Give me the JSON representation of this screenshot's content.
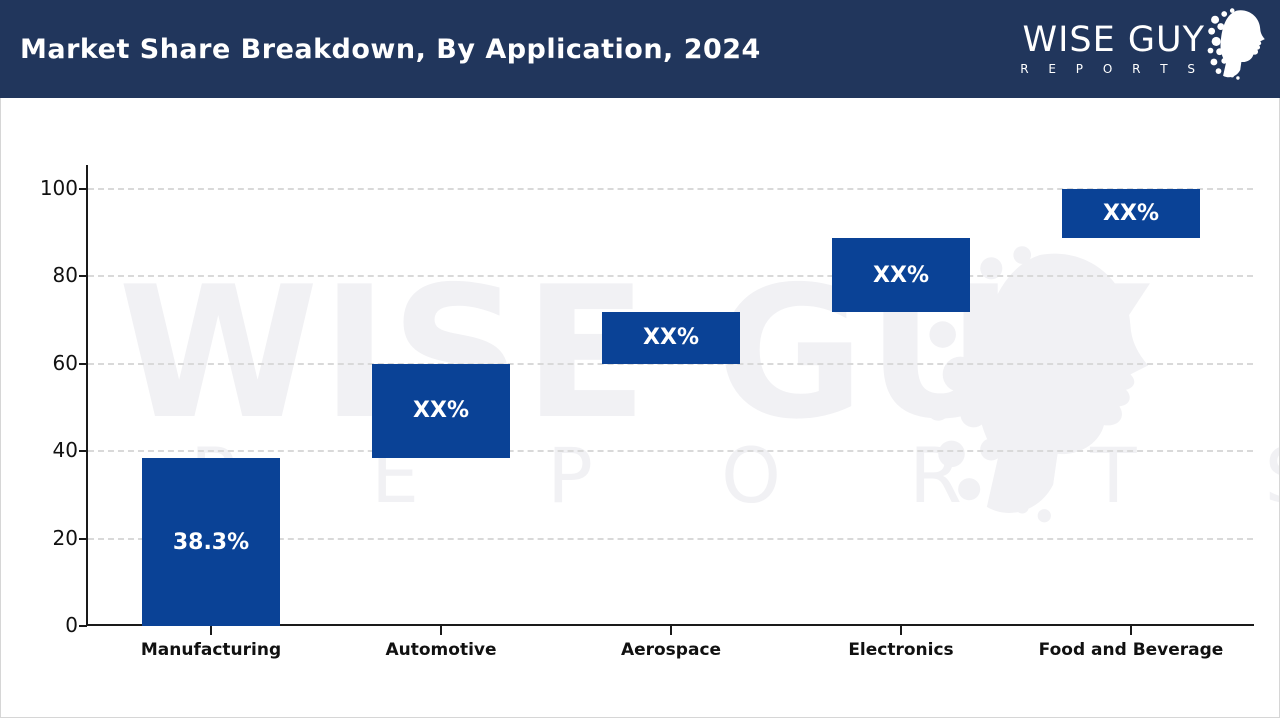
{
  "header": {
    "title": "Market Share Breakdown, By Application, 2024",
    "bg_color": "#21365c",
    "brand": {
      "line1": "WISE GUY",
      "line2": "R E P O R T S"
    }
  },
  "watermark": {
    "line1": "WISE GUY",
    "line2": "R E P O R T S"
  },
  "chart_data": {
    "type": "bar",
    "subtype": "waterfall",
    "title": "Market Share Breakdown, By Application, 2024",
    "categories": [
      "Manufacturing",
      "Automotive",
      "Aerospace",
      "Electronics",
      "Food and Beverage"
    ],
    "segments": [
      {
        "category": "Manufacturing",
        "start": 0,
        "end": 38.3,
        "value_label": "38.3%"
      },
      {
        "category": "Automotive",
        "start": 38.3,
        "end": 60.0,
        "value_label": "XX%"
      },
      {
        "category": "Aerospace",
        "start": 60.0,
        "end": 71.8,
        "value_label": "XX%"
      },
      {
        "category": "Electronics",
        "start": 71.8,
        "end": 88.6,
        "value_label": "XX%"
      },
      {
        "category": "Food and Beverage",
        "start": 88.6,
        "end": 100.0,
        "value_label": "XX%"
      }
    ],
    "y_ticks": [
      0,
      20,
      40,
      60,
      80,
      100
    ],
    "ylim": [
      0,
      105
    ],
    "xlabel": "",
    "ylabel": "",
    "bar_color": "#0a4296",
    "grid": "horizontal-dashed",
    "legend": "none"
  }
}
